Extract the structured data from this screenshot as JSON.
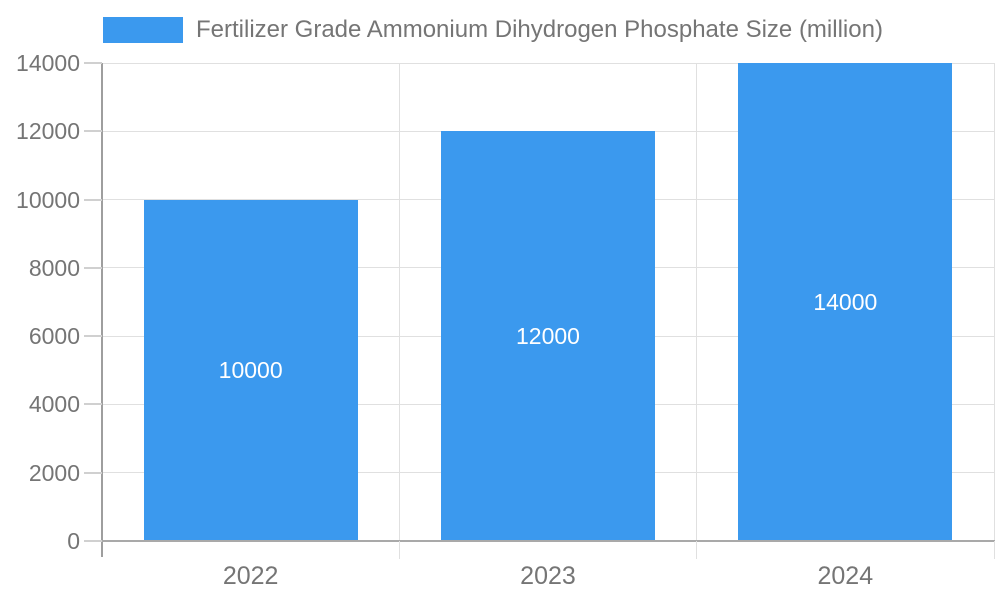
{
  "legend": {
    "label": "Fertilizer Grade Ammonium Dihydrogen Phosphate Size (million)"
  },
  "chart_data": {
    "type": "bar",
    "title": "",
    "xlabel": "",
    "ylabel": "",
    "categories": [
      "2022",
      "2023",
      "2024"
    ],
    "series": [
      {
        "name": "Fertilizer Grade Ammonium Dihydrogen Phosphate Size (million)",
        "values": [
          10000,
          12000,
          14000
        ]
      }
    ],
    "data_labels": [
      "10000",
      "12000",
      "14000"
    ],
    "data_label_position": "inside-center",
    "ylim": [
      0,
      14000
    ],
    "ytick_step": 2000,
    "ytick_labels": [
      "0",
      "2000",
      "4000",
      "6000",
      "8000",
      "10000",
      "12000",
      "14000"
    ],
    "grid": true,
    "legend_position": "top-left"
  },
  "colors": {
    "bar": "#3B99EE",
    "grid": "#E0E0E0",
    "axis_y": "#9E9E9E",
    "axis_x": "#A9A9A9",
    "tick": "#D0D0D0",
    "text": "#757575",
    "data_label": "#FFFFFF",
    "background": "#FFFFFF"
  }
}
